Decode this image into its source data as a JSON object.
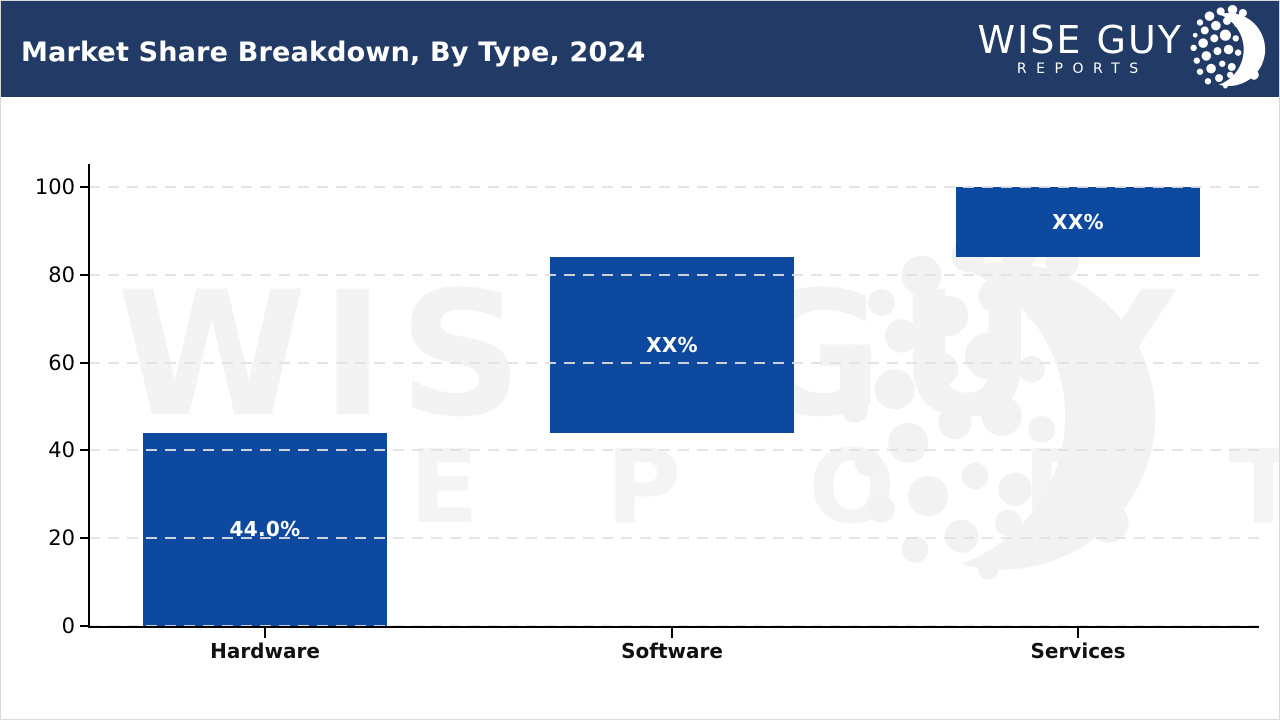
{
  "header": {
    "title": "Market Share Breakdown, By Type, 2024",
    "bg_color": "#213A66",
    "logo": {
      "wordmark": "WISE GUY",
      "subtitle": "REPORTS"
    }
  },
  "watermark": {
    "line1": "WISE GUY",
    "line2": "R E P O R T S"
  },
  "chart_data": {
    "type": "bar",
    "variant": "floating-segment bars (stacked market-share breakdown)",
    "title": "Market Share Breakdown, By Type, 2024",
    "categories": [
      "Hardware",
      "Software",
      "Services"
    ],
    "series": [
      {
        "name": "Market share (%)",
        "segments": [
          {
            "category": "Hardware",
            "start": 0,
            "end": 44,
            "label": "44.0%"
          },
          {
            "category": "Software",
            "start": 44,
            "end": 84,
            "label": "XX%"
          },
          {
            "category": "Services",
            "start": 84,
            "end": 100,
            "label": "XX%"
          }
        ]
      }
    ],
    "xlabel": "",
    "ylabel": "",
    "yticks": [
      0,
      20,
      40,
      60,
      80,
      100
    ],
    "ylim": [
      0,
      105
    ],
    "grid": "horizontal dashed",
    "gridline_color": "#E1E1E1",
    "bar_color": "#0D4A9F",
    "bar_label_color": "#FFFFFF",
    "legend": "none"
  }
}
